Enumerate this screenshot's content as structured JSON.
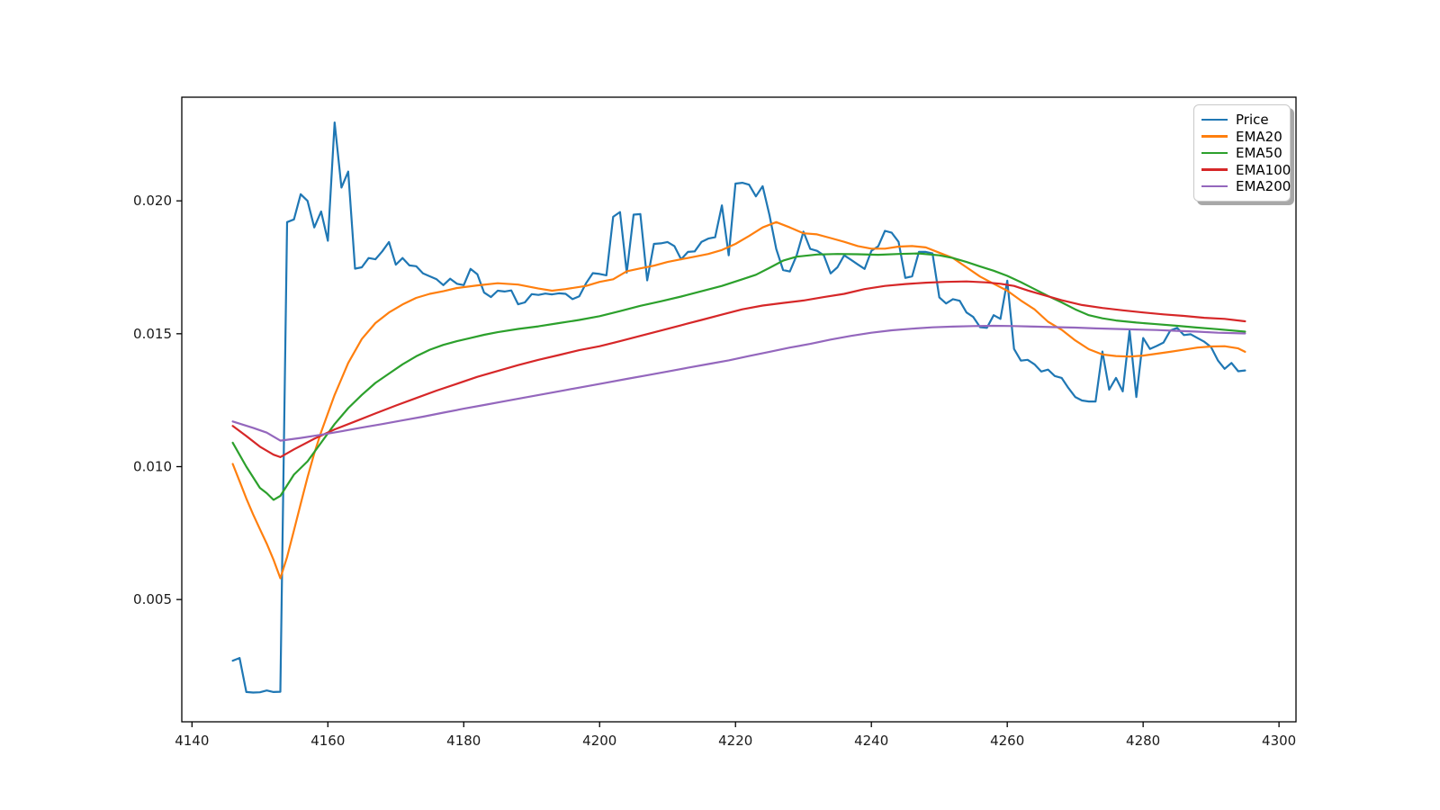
{
  "figure": {
    "background": "#ffffff"
  },
  "chart_data": {
    "type": "line",
    "title": "",
    "xlabel": "",
    "ylabel": "",
    "grid": false,
    "xlim": [
      4138.5,
      4302.5
    ],
    "ylim": [
      0.0004,
      0.0239
    ],
    "x_ticks": [
      4140,
      4160,
      4180,
      4200,
      4220,
      4240,
      4260,
      4280,
      4300
    ],
    "x_tick_labels": [
      "4140",
      "4160",
      "4180",
      "4200",
      "4220",
      "4240",
      "4260",
      "4280",
      "4300"
    ],
    "y_ticks": [
      0.005,
      0.01,
      0.015,
      0.02
    ],
    "y_tick_labels": [
      "0.005",
      "0.010",
      "0.015",
      "0.020"
    ],
    "legend": {
      "position": "upper right",
      "entries": [
        "Price",
        "EMA20",
        "EMA50",
        "EMA100",
        "EMA200"
      ]
    },
    "series": [
      {
        "name": "Price",
        "color": "#1f77b4",
        "x": [
          4146,
          4147,
          4148,
          4149,
          4150,
          4151,
          4152,
          4153,
          4154,
          4155,
          4156,
          4157,
          4158,
          4159,
          4160,
          4161,
          4162,
          4163,
          4164,
          4165,
          4166,
          4167,
          4168,
          4169,
          4170,
          4171,
          4172,
          4173,
          4174,
          4175,
          4176,
          4177,
          4178,
          4179,
          4180,
          4181,
          4182,
          4183,
          4184,
          4185,
          4186,
          4187,
          4188,
          4189,
          4190,
          4191,
          4192,
          4193,
          4194,
          4195,
          4196,
          4197,
          4198,
          4199,
          4200,
          4201,
          4202,
          4203,
          4204,
          4205,
          4206,
          4207,
          4208,
          4209,
          4210,
          4211,
          4212,
          4213,
          4214,
          4215,
          4216,
          4217,
          4218,
          4219,
          4220,
          4221,
          4222,
          4223,
          4224,
          4225,
          4226,
          4227,
          4228,
          4229,
          4230,
          4231,
          4232,
          4233,
          4234,
          4235,
          4236,
          4237,
          4238,
          4239,
          4240,
          4241,
          4242,
          4243,
          4244,
          4245,
          4246,
          4247,
          4248,
          4249,
          4250,
          4251,
          4252,
          4253,
          4254,
          4255,
          4256,
          4257,
          4258,
          4259,
          4260,
          4261,
          4262,
          4263,
          4264,
          4265,
          4266,
          4267,
          4268,
          4269,
          4270,
          4271,
          4272,
          4273,
          4274,
          4275,
          4276,
          4277,
          4278,
          4279,
          4280,
          4281,
          4282,
          4283,
          4284,
          4285,
          4286,
          4287,
          4288,
          4289,
          4290,
          4291,
          4292,
          4293,
          4294,
          4295
        ],
        "y": [
          0.0027,
          0.0028,
          0.00152,
          0.0015,
          0.00151,
          0.00158,
          0.00152,
          0.00153,
          0.0192,
          0.0193,
          0.02025,
          0.02,
          0.019,
          0.0196,
          0.0185,
          0.02295,
          0.0205,
          0.0211,
          0.01745,
          0.0175,
          0.01785,
          0.0178,
          0.0181,
          0.01845,
          0.0176,
          0.01785,
          0.01757,
          0.01754,
          0.01727,
          0.01716,
          0.01705,
          0.01683,
          0.01707,
          0.01688,
          0.01683,
          0.01744,
          0.01724,
          0.01655,
          0.01638,
          0.01662,
          0.01659,
          0.01663,
          0.01611,
          0.01618,
          0.01649,
          0.01646,
          0.01651,
          0.01648,
          0.01652,
          0.0165,
          0.0163,
          0.01641,
          0.0169,
          0.01728,
          0.01725,
          0.0172,
          0.0194,
          0.01958,
          0.0173,
          0.01948,
          0.0195,
          0.01701,
          0.01838,
          0.0184,
          0.01845,
          0.0183,
          0.0178,
          0.01808,
          0.0181,
          0.01846,
          0.01858,
          0.01863,
          0.01983,
          0.01795,
          0.02065,
          0.02068,
          0.02061,
          0.02017,
          0.02055,
          0.01946,
          0.01819,
          0.0174,
          0.01734,
          0.01795,
          0.01884,
          0.01819,
          0.01812,
          0.01795,
          0.01727,
          0.0175,
          0.01795,
          0.01778,
          0.01761,
          0.01744,
          0.01812,
          0.01829,
          0.01887,
          0.0188,
          0.01846,
          0.0171,
          0.01716,
          0.01808,
          0.01808,
          0.01802,
          0.01637,
          0.01614,
          0.0163,
          0.01624,
          0.0158,
          0.01563,
          0.01525,
          0.01522,
          0.0157,
          0.01556,
          0.017,
          0.01443,
          0.01399,
          0.01402,
          0.01385,
          0.01358,
          0.01365,
          0.01341,
          0.01334,
          0.01296,
          0.01262,
          0.01249,
          0.01245,
          0.01245,
          0.01433,
          0.0129,
          0.01334,
          0.01283,
          0.01512,
          0.01262,
          0.01484,
          0.01443,
          0.01454,
          0.01467,
          0.01512,
          0.01522,
          0.01495,
          0.01498,
          0.01484,
          0.0147,
          0.0145,
          0.014,
          0.01368,
          0.0139,
          0.01359,
          0.01362
        ]
      },
      {
        "name": "EMA20",
        "color": "#ff7f0e",
        "x": [
          4146,
          4147,
          4148,
          4149,
          4150,
          4151,
          4152,
          4153,
          4154,
          4155,
          4156,
          4157,
          4158,
          4159,
          4160,
          4161,
          4162,
          4163,
          4165,
          4167,
          4169,
          4171,
          4173,
          4175,
          4177,
          4179,
          4182,
          4185,
          4188,
          4191,
          4193,
          4195,
          4198,
          4200,
          4202,
          4204,
          4206,
          4208,
          4210,
          4212,
          4214,
          4216,
          4218,
          4220,
          4222,
          4224,
          4226,
          4228,
          4230,
          4232,
          4234,
          4236,
          4238,
          4240,
          4242,
          4244,
          4246,
          4248,
          4250,
          4252,
          4254,
          4256,
          4258,
          4260,
          4262,
          4264,
          4266,
          4268,
          4270,
          4272,
          4274,
          4276,
          4278,
          4280,
          4282,
          4284,
          4286,
          4288,
          4290,
          4292,
          4294,
          4295
        ],
        "y": [
          0.0101,
          0.00945,
          0.0088,
          0.0082,
          0.00765,
          0.0071,
          0.0065,
          0.0058,
          0.0066,
          0.0076,
          0.0086,
          0.0096,
          0.0105,
          0.0113,
          0.012,
          0.0127,
          0.0133,
          0.0139,
          0.0148,
          0.0154,
          0.0158,
          0.0161,
          0.01635,
          0.0165,
          0.0166,
          0.01672,
          0.01682,
          0.0169,
          0.01685,
          0.0167,
          0.01662,
          0.01668,
          0.0168,
          0.01695,
          0.01705,
          0.01735,
          0.01746,
          0.01756,
          0.0177,
          0.0178,
          0.0179,
          0.018,
          0.01815,
          0.01838,
          0.01868,
          0.019,
          0.0192,
          0.019,
          0.01878,
          0.01874,
          0.0186,
          0.01846,
          0.0183,
          0.0182,
          0.0182,
          0.01828,
          0.0183,
          0.01825,
          0.01805,
          0.01785,
          0.0175,
          0.01715,
          0.01688,
          0.01662,
          0.01625,
          0.01592,
          0.01545,
          0.01515,
          0.01475,
          0.01442,
          0.01422,
          0.01416,
          0.01414,
          0.01418,
          0.01425,
          0.01432,
          0.0144,
          0.01448,
          0.01452,
          0.01453,
          0.01445,
          0.01432
        ]
      },
      {
        "name": "EMA50",
        "color": "#2ca02c",
        "x": [
          4146,
          4148,
          4150,
          4151,
          4152,
          4153,
          4155,
          4157,
          4159,
          4161,
          4163,
          4165,
          4167,
          4169,
          4171,
          4173,
          4175,
          4177,
          4179,
          4181,
          4183,
          4185,
          4188,
          4191,
          4194,
          4197,
          4200,
          4203,
          4206,
          4209,
          4212,
          4215,
          4218,
          4221,
          4223,
          4225,
          4227,
          4229,
          4232,
          4235,
          4238,
          4241,
          4244,
          4247,
          4250,
          4252,
          4254,
          4256,
          4258,
          4260,
          4262,
          4264,
          4266,
          4268,
          4270,
          4272,
          4274,
          4276,
          4279,
          4282,
          4285,
          4288,
          4291,
          4295
        ],
        "y": [
          0.0109,
          0.01,
          0.0092,
          0.009,
          0.00875,
          0.0089,
          0.0097,
          0.0102,
          0.0109,
          0.0116,
          0.0122,
          0.0127,
          0.01315,
          0.0135,
          0.01385,
          0.01415,
          0.0144,
          0.01458,
          0.01472,
          0.01484,
          0.01496,
          0.01506,
          0.01518,
          0.01528,
          0.0154,
          0.01552,
          0.01566,
          0.01585,
          0.01605,
          0.01622,
          0.0164,
          0.0166,
          0.0168,
          0.01705,
          0.01722,
          0.01748,
          0.01775,
          0.0179,
          0.01798,
          0.018,
          0.01799,
          0.01797,
          0.018,
          0.01802,
          0.01795,
          0.01785,
          0.0177,
          0.01753,
          0.01737,
          0.01718,
          0.01694,
          0.01668,
          0.01642,
          0.01618,
          0.01592,
          0.0157,
          0.01558,
          0.0155,
          0.01542,
          0.01536,
          0.0153,
          0.01523,
          0.01517,
          0.01508
        ]
      },
      {
        "name": "EMA100",
        "color": "#d62728",
        "x": [
          4146,
          4148,
          4150,
          4152,
          4153,
          4155,
          4158,
          4161,
          4164,
          4167,
          4170,
          4173,
          4176,
          4179,
          4182,
          4185,
          4188,
          4191,
          4194,
          4197,
          4200,
          4203,
          4206,
          4209,
          4212,
          4215,
          4218,
          4221,
          4224,
          4227,
          4230,
          4233,
          4236,
          4239,
          4242,
          4245,
          4248,
          4251,
          4254,
          4257,
          4259,
          4261,
          4263,
          4265,
          4268,
          4271,
          4274,
          4277,
          4280,
          4283,
          4286,
          4289,
          4292,
          4295
        ],
        "y": [
          0.01153,
          0.01115,
          0.01075,
          0.01045,
          0.01036,
          0.01065,
          0.01105,
          0.0114,
          0.0117,
          0.012,
          0.0123,
          0.01258,
          0.01286,
          0.01312,
          0.01338,
          0.0136,
          0.01382,
          0.01402,
          0.0142,
          0.01438,
          0.01453,
          0.01472,
          0.01492,
          0.01512,
          0.01532,
          0.01552,
          0.01572,
          0.01592,
          0.01606,
          0.01616,
          0.01625,
          0.01638,
          0.0165,
          0.01668,
          0.0168,
          0.01687,
          0.01692,
          0.01695,
          0.01697,
          0.01693,
          0.01688,
          0.0168,
          0.01663,
          0.01648,
          0.01626,
          0.01608,
          0.01597,
          0.01588,
          0.0158,
          0.01573,
          0.01567,
          0.0156,
          0.01556,
          0.01547
        ]
      },
      {
        "name": "EMA200",
        "color": "#9467bd",
        "x": [
          4146,
          4149,
          4151,
          4153,
          4156,
          4159,
          4162,
          4165,
          4168,
          4171,
          4174,
          4177,
          4180,
          4183,
          4186,
          4189,
          4192,
          4195,
          4198,
          4201,
          4204,
          4207,
          4210,
          4213,
          4216,
          4219,
          4222,
          4225,
          4228,
          4231,
          4234,
          4237,
          4240,
          4243,
          4246,
          4249,
          4252,
          4255,
          4258,
          4261,
          4264,
          4267,
          4270,
          4273,
          4276,
          4279,
          4282,
          4285,
          4288,
          4291,
          4295
        ],
        "y": [
          0.0117,
          0.01146,
          0.01128,
          0.01098,
          0.01108,
          0.0112,
          0.01133,
          0.01147,
          0.0116,
          0.01174,
          0.01188,
          0.01203,
          0.01218,
          0.01232,
          0.01246,
          0.0126,
          0.01274,
          0.01288,
          0.01302,
          0.01316,
          0.0133,
          0.01344,
          0.01358,
          0.01372,
          0.01386,
          0.014,
          0.01416,
          0.01432,
          0.01448,
          0.01462,
          0.01478,
          0.01492,
          0.01504,
          0.01513,
          0.01519,
          0.01524,
          0.01527,
          0.01529,
          0.0153,
          0.01529,
          0.01527,
          0.01525,
          0.01523,
          0.0152,
          0.01518,
          0.01516,
          0.01514,
          0.01511,
          0.01508,
          0.01504,
          0.01501
        ]
      }
    ]
  }
}
